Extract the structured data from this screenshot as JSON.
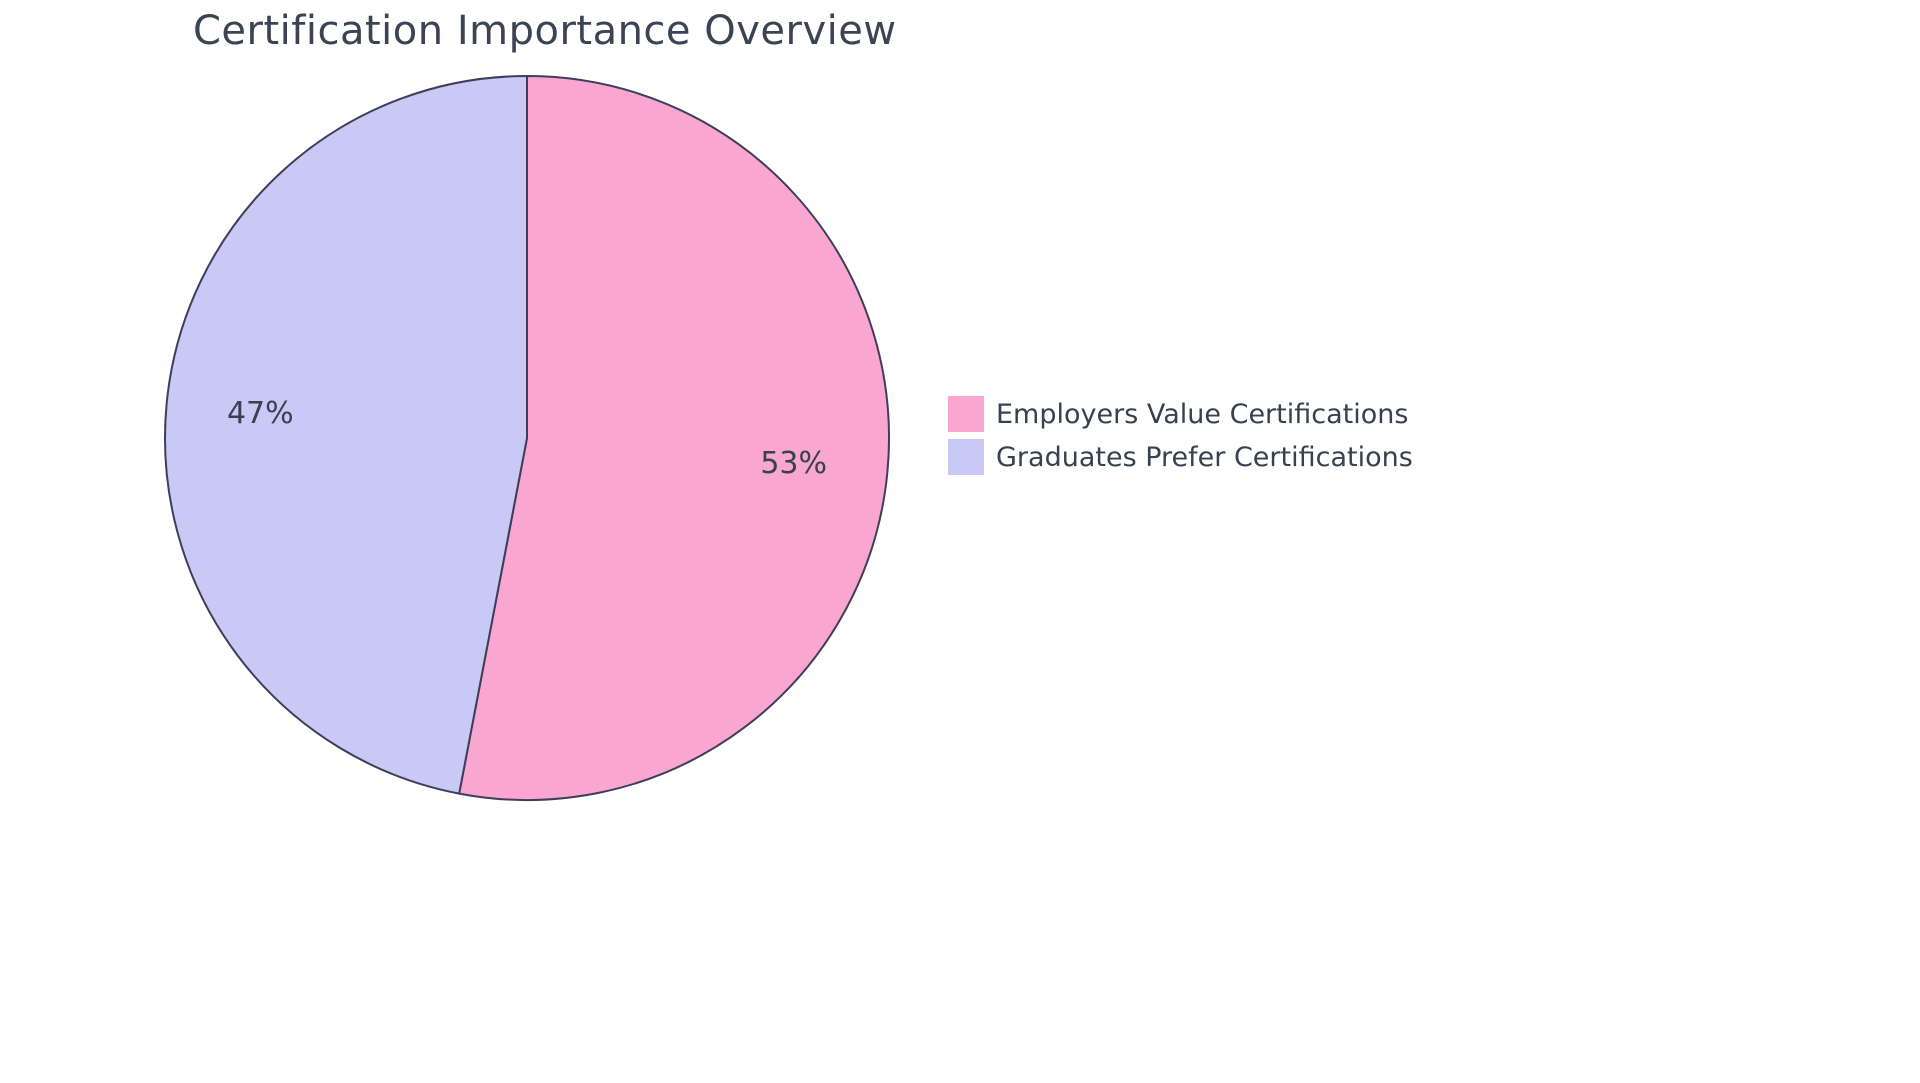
{
  "chart_data": {
    "type": "pie",
    "title": "Certification Importance Overview",
    "slices": [
      {
        "label": "Employers Value Certifications",
        "value": 53,
        "percent_label": "53%",
        "color": "#F9A6D0"
      },
      {
        "label": "Graduates Prefer Certifications",
        "value": 47,
        "percent_label": "47%",
        "color": "#C8C9F5"
      }
    ],
    "start_angle_deg": -90,
    "direction": "clockwise",
    "stroke_color": "#3e3e5c",
    "stroke_width": 2,
    "label_color": "#3a4050",
    "legend_position": "right",
    "grid": false
  }
}
